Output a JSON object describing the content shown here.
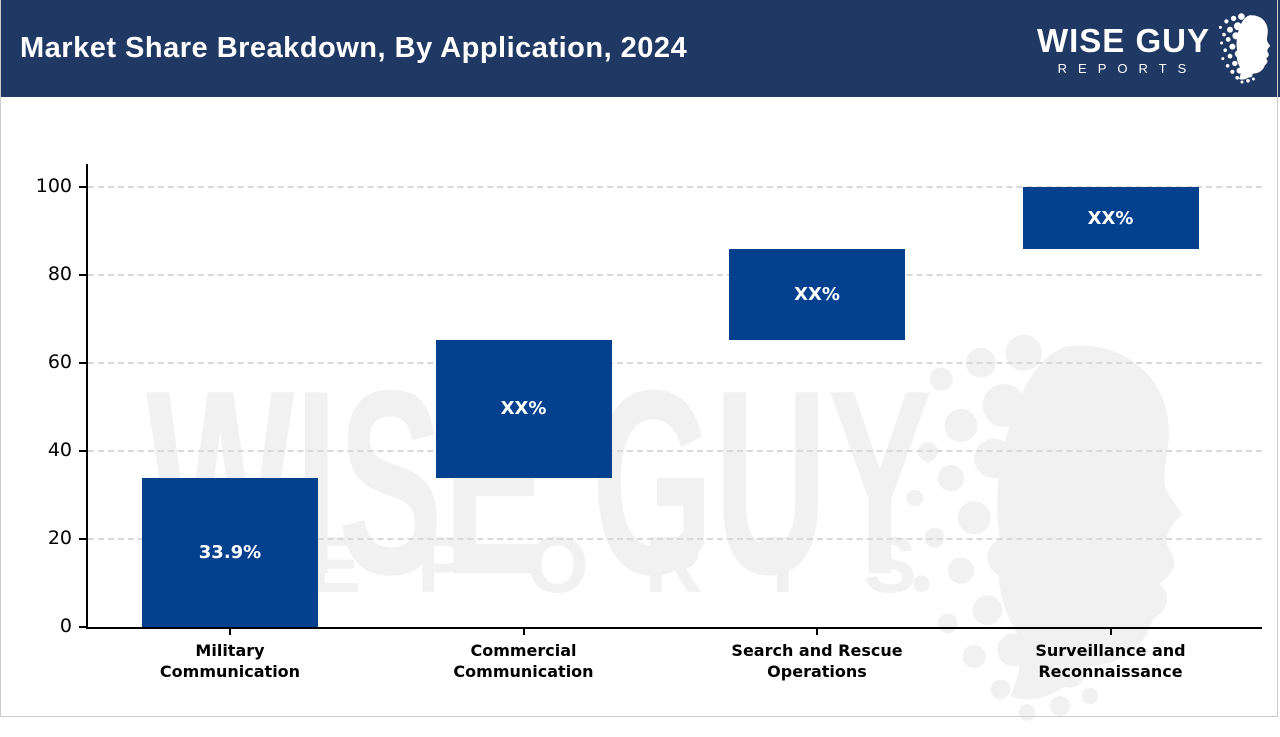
{
  "header": {
    "title": "Market Share Breakdown, By Application, 2024",
    "bg_color": "#1f3864",
    "logo": {
      "line1": "WISE GUY",
      "line2": "REPORTS"
    }
  },
  "watermark": {
    "line1": "WISE GUY",
    "line2": "REPORTS",
    "color": "#f1f1f1"
  },
  "chart_data": {
    "type": "bar",
    "variant": "waterfall",
    "title": "Market Share Breakdown, By Application, 2024",
    "categories": [
      [
        "Military",
        "Communication"
      ],
      [
        "Commercial",
        "Communication"
      ],
      [
        "Search and Rescue",
        "Operations"
      ],
      [
        "Surveillance and",
        "Reconnaissance"
      ]
    ],
    "segments": [
      {
        "start": 0,
        "end": 33.9,
        "label": "33.9%"
      },
      {
        "start": 33.9,
        "end": 65.2,
        "label": "XX%"
      },
      {
        "start": 65.2,
        "end": 85.9,
        "label": "XX%"
      },
      {
        "start": 85.9,
        "end": 100,
        "label": "XX%"
      }
    ],
    "bar_color": "#03418f",
    "bar_label_color": "#ffffff",
    "ylim": [
      0,
      100
    ],
    "yticks": [
      0,
      20,
      40,
      60,
      80,
      100
    ],
    "xlabel": "",
    "ylabel": "",
    "grid": {
      "horizontal": true,
      "style": "dashed",
      "color": "#d9d9d9"
    },
    "legend": "none",
    "axis_color": "#000000"
  }
}
